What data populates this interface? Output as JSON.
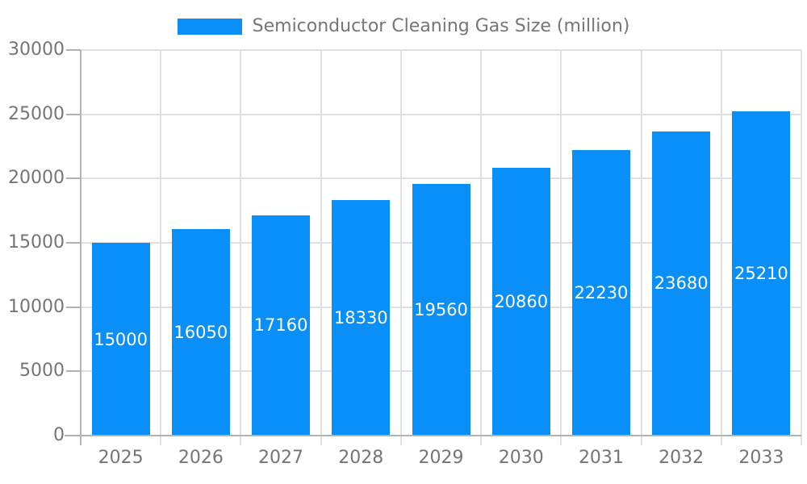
{
  "legend": {
    "label": "Semiconductor Cleaning Gas Size (million)"
  },
  "colors": {
    "bar": "#0a8ef8",
    "gridline": "#e0e0e0",
    "axis_line": "#b3b3b3",
    "axis_text": "#757575",
    "bar_label_text": "#ffffff",
    "background": "#ffffff"
  },
  "chart_data": {
    "type": "bar",
    "title": "Semiconductor Cleaning Gas Size (million)",
    "categories": [
      "2025",
      "2026",
      "2027",
      "2028",
      "2029",
      "2030",
      "2031",
      "2032",
      "2033"
    ],
    "values": [
      15000,
      16050,
      17160,
      18330,
      19560,
      20860,
      22230,
      23680,
      25210
    ],
    "xlabel": "",
    "ylabel": "",
    "ylim": [
      0,
      30000
    ],
    "yticks": [
      0,
      5000,
      10000,
      15000,
      20000,
      25000,
      30000
    ],
    "ytick_labels": [
      "0",
      "5000",
      "10000",
      "15000",
      "20000",
      "25000",
      "30000"
    ],
    "grid": true,
    "legend_position": "top-center",
    "data_labels": "inside-middle",
    "bar_color": "#0a8ef8"
  }
}
